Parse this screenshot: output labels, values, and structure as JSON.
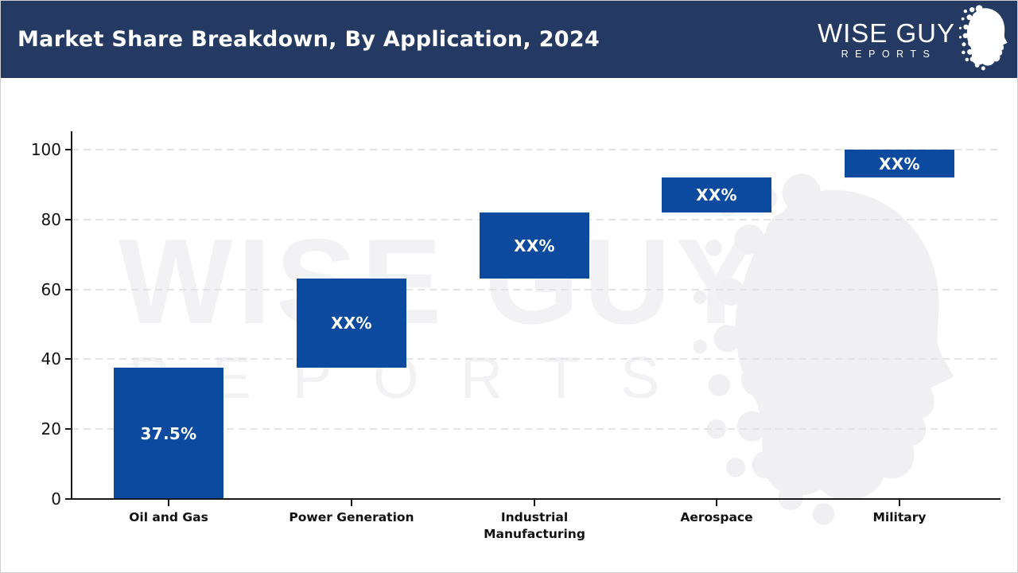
{
  "header": {
    "title": "Market Share Breakdown, By Application, 2024",
    "bg_color": "#243A63",
    "logo": {
      "line1": "WISE GUY",
      "line2": "REPORTS"
    }
  },
  "watermark": {
    "line1": "WISE GUY",
    "line2": "REPORTS"
  },
  "chart_data": {
    "type": "bar",
    "subtype": "waterfall",
    "title": "Market Share Breakdown, By Application, 2024",
    "categories": [
      "Oil and Gas",
      "Power Generation",
      "Industrial\nManufacturing",
      "Aerospace",
      "Military"
    ],
    "segments": [
      {
        "category": "Oil and Gas",
        "start": 0,
        "end": 37.5,
        "value": 37.5,
        "label": "37.5%"
      },
      {
        "category": "Power Generation",
        "start": 37.5,
        "end": 63,
        "value": 25.5,
        "label": "XX%"
      },
      {
        "category": "Industrial Manufacturing",
        "start": 63,
        "end": 82,
        "value": 19,
        "label": "XX%"
      },
      {
        "category": "Aerospace",
        "start": 82,
        "end": 92,
        "value": 10,
        "label": "XX%"
      },
      {
        "category": "Military",
        "start": 92,
        "end": 100,
        "value": 8,
        "label": "XX%"
      }
    ],
    "ylim": [
      0,
      100
    ],
    "yticks": [
      0,
      20,
      40,
      60,
      80,
      100
    ],
    "xlabel": "",
    "ylabel": "",
    "grid": "horizontal-dashed",
    "legend": "none",
    "bar_color": "#0B4A9F",
    "bar_label_color": "#ffffff",
    "axis_color": "#1a1a1a",
    "gridline_color": "#e4e4e6"
  }
}
